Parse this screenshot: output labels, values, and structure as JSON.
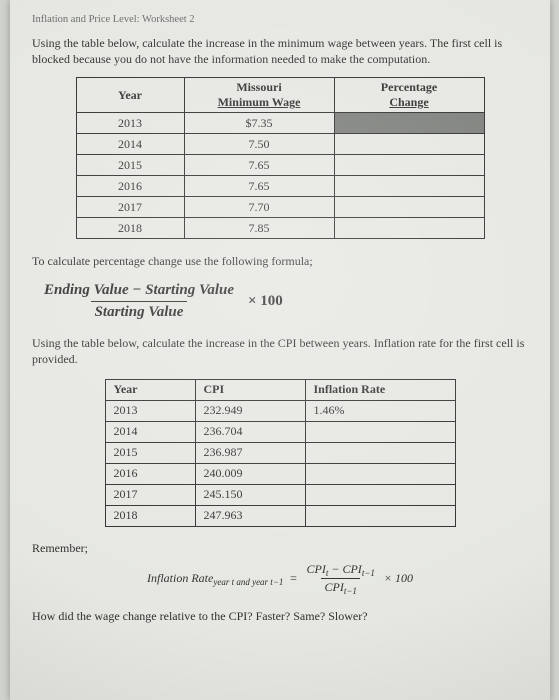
{
  "header": "Inflation and Price Level: Worksheet 2",
  "intro": "Using the table below, calculate the increase in the minimum wage between years. The first cell is blocked because you do not have the information needed to make the computation.",
  "table1": {
    "headers": {
      "year": "Year",
      "col2_line1": "Missouri",
      "col2_line2": "Minimum Wage",
      "col3_line1": "Percentage",
      "col3_line2": "Change"
    },
    "rows": [
      {
        "year": "2013",
        "wage": "$7.35",
        "change": "",
        "blocked": true
      },
      {
        "year": "2014",
        "wage": "7.50",
        "change": ""
      },
      {
        "year": "2015",
        "wage": "7.65",
        "change": ""
      },
      {
        "year": "2016",
        "wage": "7.65",
        "change": ""
      },
      {
        "year": "2017",
        "wage": "7.70",
        "change": ""
      },
      {
        "year": "2018",
        "wage": "7.85",
        "change": ""
      }
    ]
  },
  "para_formula_intro": "To calculate percentage change use the following formula;",
  "formula1": {
    "numerator": "Ending Value − Starting Value",
    "denominator": "Starting Value",
    "mult": "× 100"
  },
  "para_cpi_intro": "Using the table below, calculate the increase in the CPI between years. Inflation rate for the first cell is provided.",
  "table2": {
    "headers": {
      "year": "Year",
      "cpi": "CPI",
      "rate": "Inflation Rate"
    },
    "rows": [
      {
        "year": "2013",
        "cpi": "232.949",
        "rate": "1.46%"
      },
      {
        "year": "2014",
        "cpi": "236.704",
        "rate": ""
      },
      {
        "year": "2015",
        "cpi": "236.987",
        "rate": ""
      },
      {
        "year": "2016",
        "cpi": "240.009",
        "rate": ""
      },
      {
        "year": "2017",
        "cpi": "245.150",
        "rate": ""
      },
      {
        "year": "2018",
        "cpi": "247.963",
        "rate": ""
      }
    ]
  },
  "remember": "Remember;",
  "formula2": {
    "lhs_main": "Inflation Rate",
    "lhs_sub": "year t and year t−1",
    "eq": "=",
    "num_a": "CPI",
    "num_a_sub": "t",
    "minus": "−",
    "num_b": "CPI",
    "num_b_sub": "t−1",
    "den": "CPI",
    "den_sub": "t−1",
    "mult": "× 100"
  },
  "final_q": "How did the wage change relative to the CPI? Faster? Same? Slower?",
  "colors": {
    "page_bg": "#e6e7e2",
    "body_bg": "#d0d2cc",
    "text": "#2e302d",
    "header_text": "#6a6d6a",
    "border": "#2e302d",
    "blocked_bg": "#7c7e7a"
  }
}
